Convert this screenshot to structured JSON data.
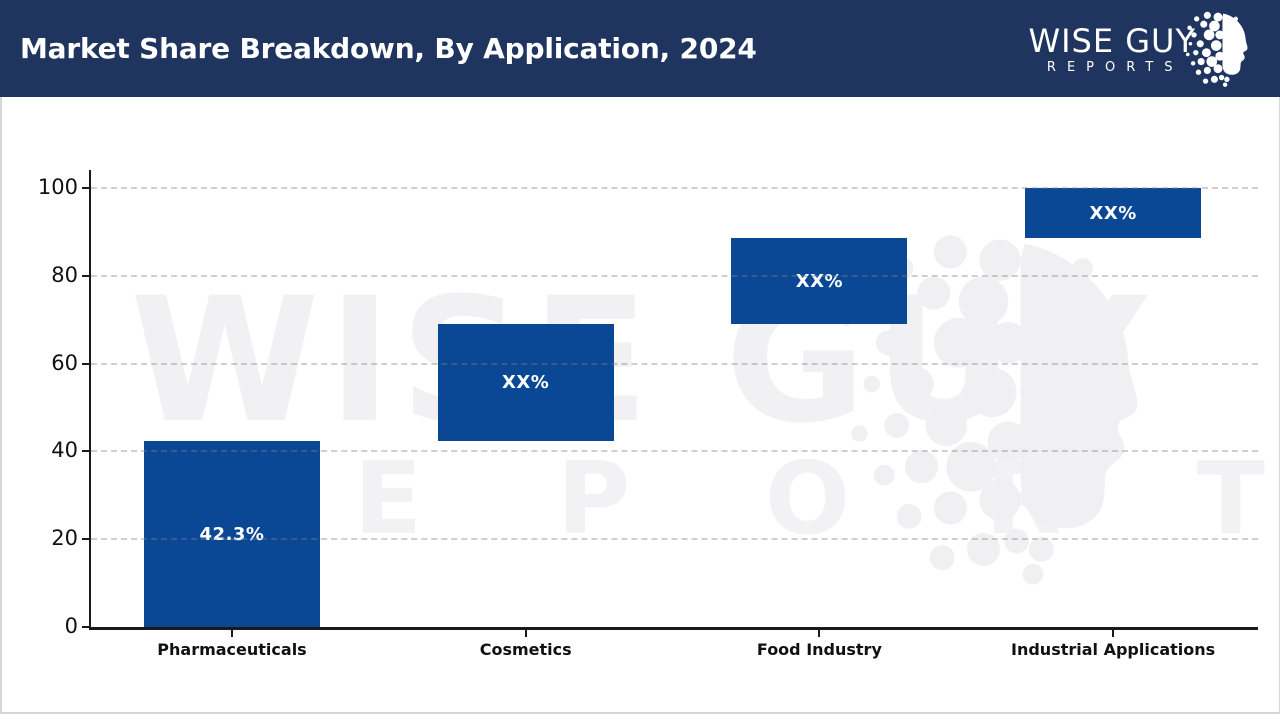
{
  "header": {
    "title": "Market Share Breakdown, By Application, 2024",
    "logo": {
      "line1": "WISE GUY",
      "line2": "REPORTS"
    }
  },
  "colors": {
    "header_bg": "#1f3560",
    "bar": "#0a4896",
    "axis": "#1a1a1a",
    "watermark": "#f0f0f2"
  },
  "watermark": {
    "line1": "WISE GUY",
    "line2": "R E P O R T S"
  },
  "chart_data": {
    "type": "bar",
    "subtype": "waterfall",
    "title": "Market Share Breakdown, By Application, 2024",
    "categories": [
      "Pharmaceuticals",
      "Cosmetics",
      "Food Industry",
      "Industrial Applications"
    ],
    "series": [
      {
        "category": "Pharmaceuticals",
        "start": 0,
        "end": 42.3,
        "label": "42.3%"
      },
      {
        "category": "Cosmetics",
        "start": 42.3,
        "end": 69,
        "label": "XX%"
      },
      {
        "category": "Food Industry",
        "start": 69,
        "end": 88.5,
        "label": "XX%"
      },
      {
        "category": "Industrial Applications",
        "start": 88.5,
        "end": 100,
        "label": "XX%"
      }
    ],
    "xlabel": "",
    "ylabel": "",
    "ylim": [
      0,
      100
    ],
    "yticks": [
      0,
      20,
      40,
      60,
      80,
      100
    ],
    "grid": "horizontal-dashed",
    "legend": "none",
    "bar_label_color": "#ffffff"
  }
}
